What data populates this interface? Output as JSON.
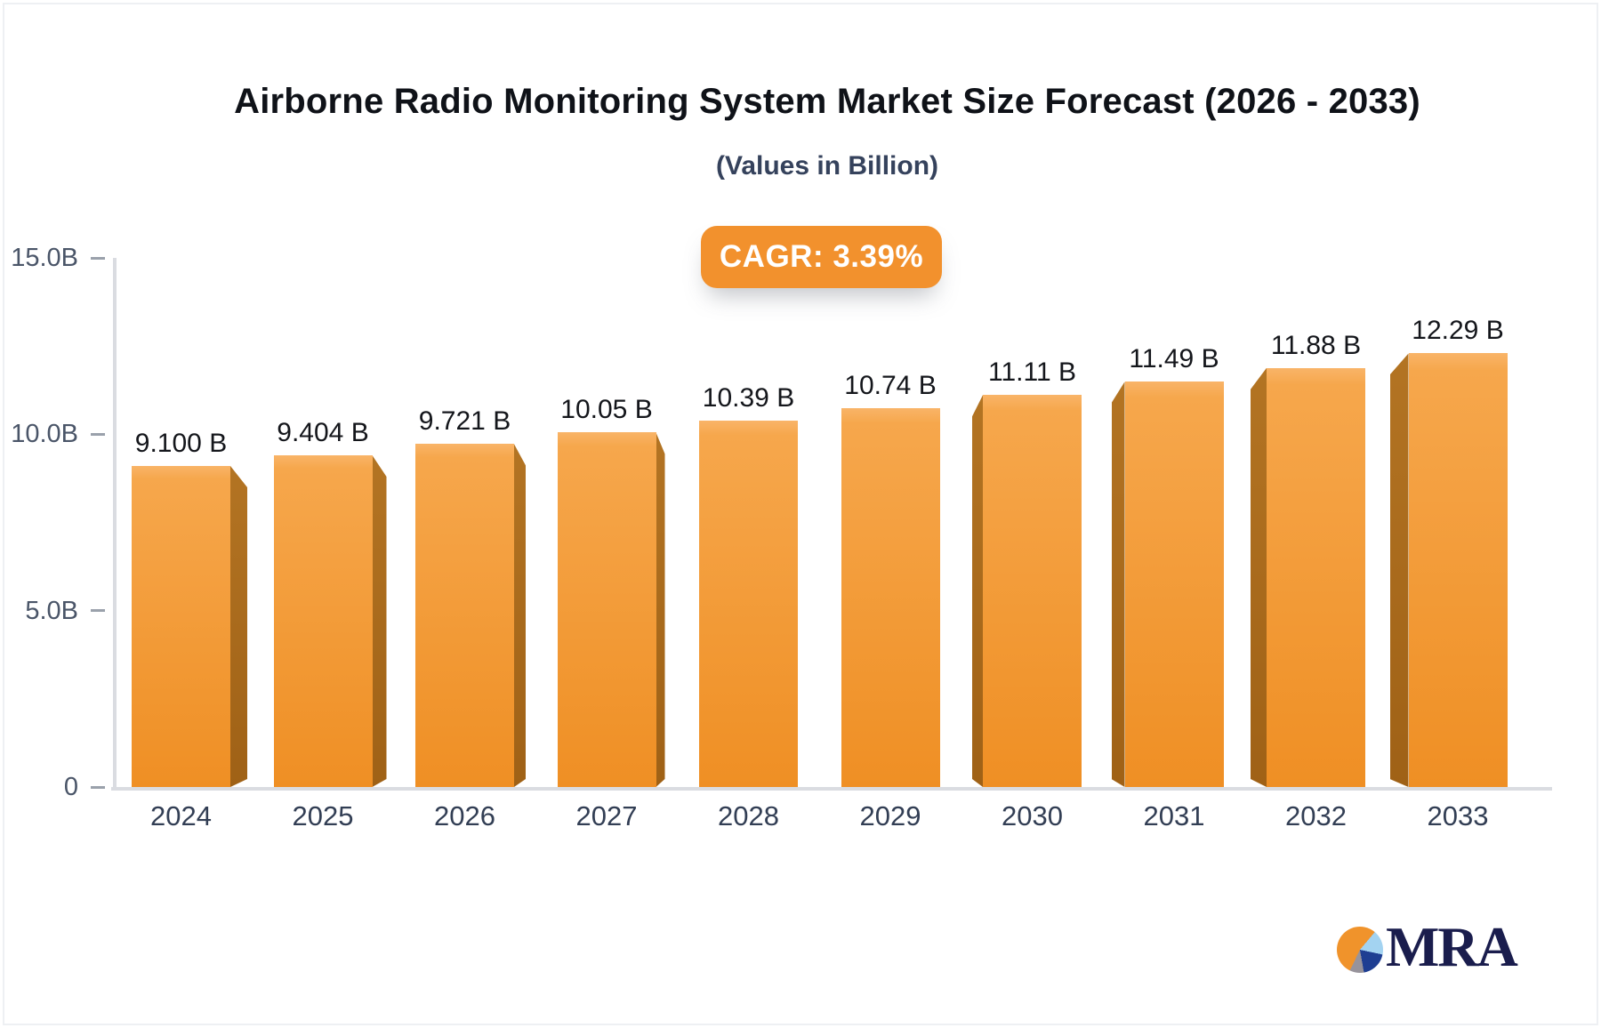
{
  "header": {
    "title": "Airborne Radio Monitoring System Market Size Forecast (2026 - 2033)",
    "subtitle": "(Values in Billion)"
  },
  "badge": {
    "label": "CAGR: 3.39%"
  },
  "chart_data": {
    "type": "bar",
    "title": "Airborne Radio Monitoring System Market Size Forecast (2026 - 2033)",
    "subtitle": "(Values in Billion)",
    "annotation": "CAGR: 3.39%",
    "categories": [
      "2024",
      "2025",
      "2026",
      "2027",
      "2028",
      "2029",
      "2030",
      "2031",
      "2032",
      "2033"
    ],
    "values": [
      9.1,
      9.404,
      9.721,
      10.05,
      10.39,
      10.74,
      11.11,
      11.49,
      11.88,
      12.29
    ],
    "value_labels": [
      "9.100 B",
      "9.404 B",
      "9.721 B",
      "10.05 B",
      "10.39 B",
      "10.74 B",
      "11.11 B",
      "11.49 B",
      "11.88 B",
      "12.29 B"
    ],
    "xlabel": "",
    "ylabel": "",
    "ylim": [
      0,
      15
    ],
    "yticks": [
      {
        "label": "15.0B",
        "value": 15
      },
      {
        "label": "10.0B",
        "value": 10
      },
      {
        "label": "5.0B",
        "value": 5
      },
      {
        "label": "0",
        "value": 0
      }
    ],
    "grid": false,
    "legend": false
  },
  "logo": {
    "text": "MRA",
    "icon": "pie-chart-icon"
  },
  "colors": {
    "bar_face_top": "#f9b468",
    "bar_face_mid": "#f6a74c",
    "bar_face_bottom": "#ef8f24",
    "bar_side_top": "#b37423",
    "bar_side_bottom": "#9f6116",
    "badge_bg": "#f2912d",
    "axis_line": "#dadce1",
    "tick_label": "#4a5568",
    "year_label": "#323e54",
    "value_label": "#14161b",
    "logo_navy": "#1a1d4d",
    "logo_orange": "#f0932b",
    "logo_light_blue": "#a3d3f1",
    "logo_gray": "#97939b"
  }
}
